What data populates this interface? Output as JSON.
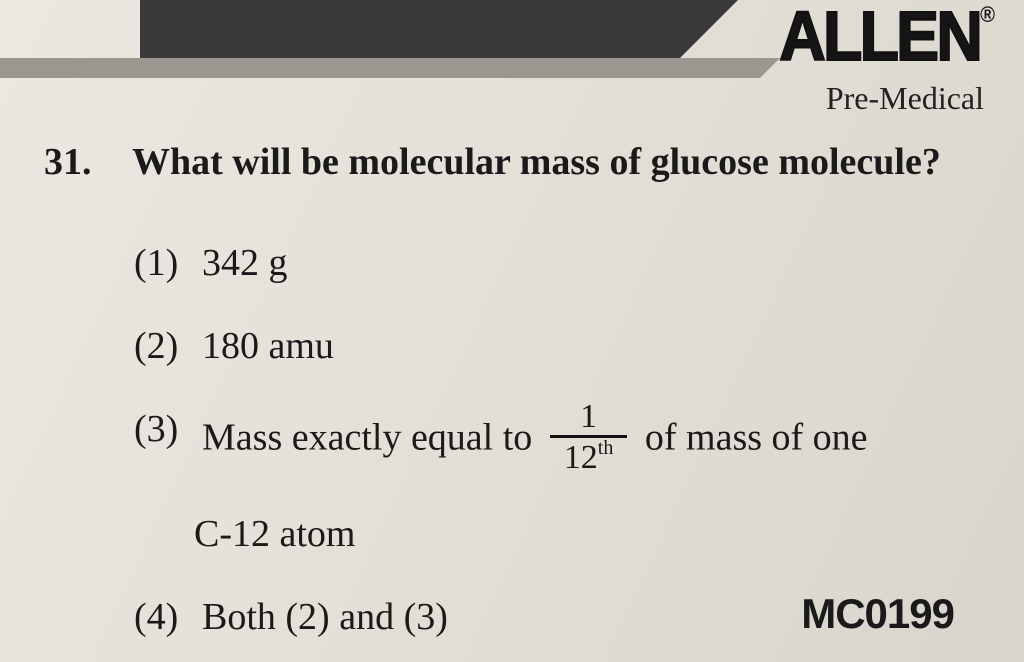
{
  "header": {
    "brand": "ALLEN",
    "brand_mark": "®",
    "subtitle": "Pre-Medical",
    "banner_dark_color": "#3a3a3a",
    "banner_grey_color": "#9a9790"
  },
  "question": {
    "number": "31.",
    "text": "What will be molecular mass of glucose molecule?"
  },
  "options": [
    {
      "num": "(1)",
      "text": "342 g"
    },
    {
      "num": "(2)",
      "text": "180 amu"
    },
    {
      "num": "(3)",
      "prefix": "Mass exactly equal to",
      "fraction_top": "1",
      "fraction_bot_num": "12",
      "fraction_bot_suffix": "th",
      "suffix": "of mass of one",
      "line2": "C-12 atom"
    },
    {
      "num": "(4)",
      "text": "Both (2) and (3)"
    }
  ],
  "code": "MC0199",
  "style": {
    "page_bg": "#e8e4de",
    "text_color": "#1a1a1a",
    "question_fontsize": 38,
    "option_fontsize": 38,
    "brand_fontsize": 70,
    "code_fontsize": 42
  }
}
